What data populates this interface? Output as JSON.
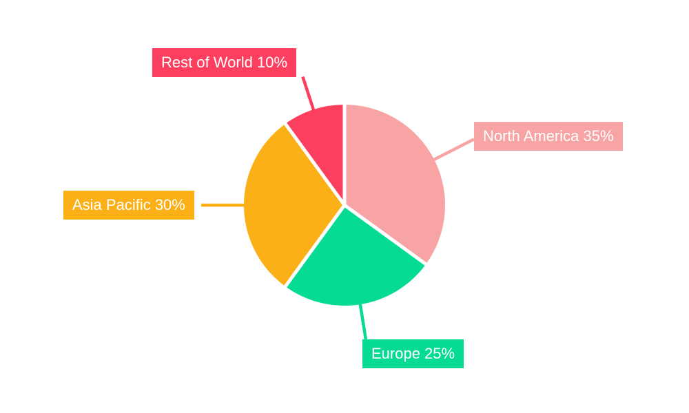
{
  "chart_data": {
    "type": "pie",
    "categories": [
      "North America",
      "Europe",
      "Asia Pacific",
      "Rest of World"
    ],
    "values": [
      35,
      25,
      30,
      10
    ],
    "unit": "%",
    "colors": [
      "#f8a4a5",
      "#06db93",
      "#fcb017",
      "#fc3f5e"
    ],
    "label_texts": [
      "North America 35%",
      "Europe 25%",
      "Asia Pacific 30%",
      "Rest of World 10%"
    ],
    "start_angle": "12 o'clock",
    "direction": "clockwise",
    "slice_gap_color": "#ffffff",
    "label_text_color": "#ffffff",
    "background": "#ffffff",
    "legend": "none (outside callout labels with leader lines)"
  }
}
